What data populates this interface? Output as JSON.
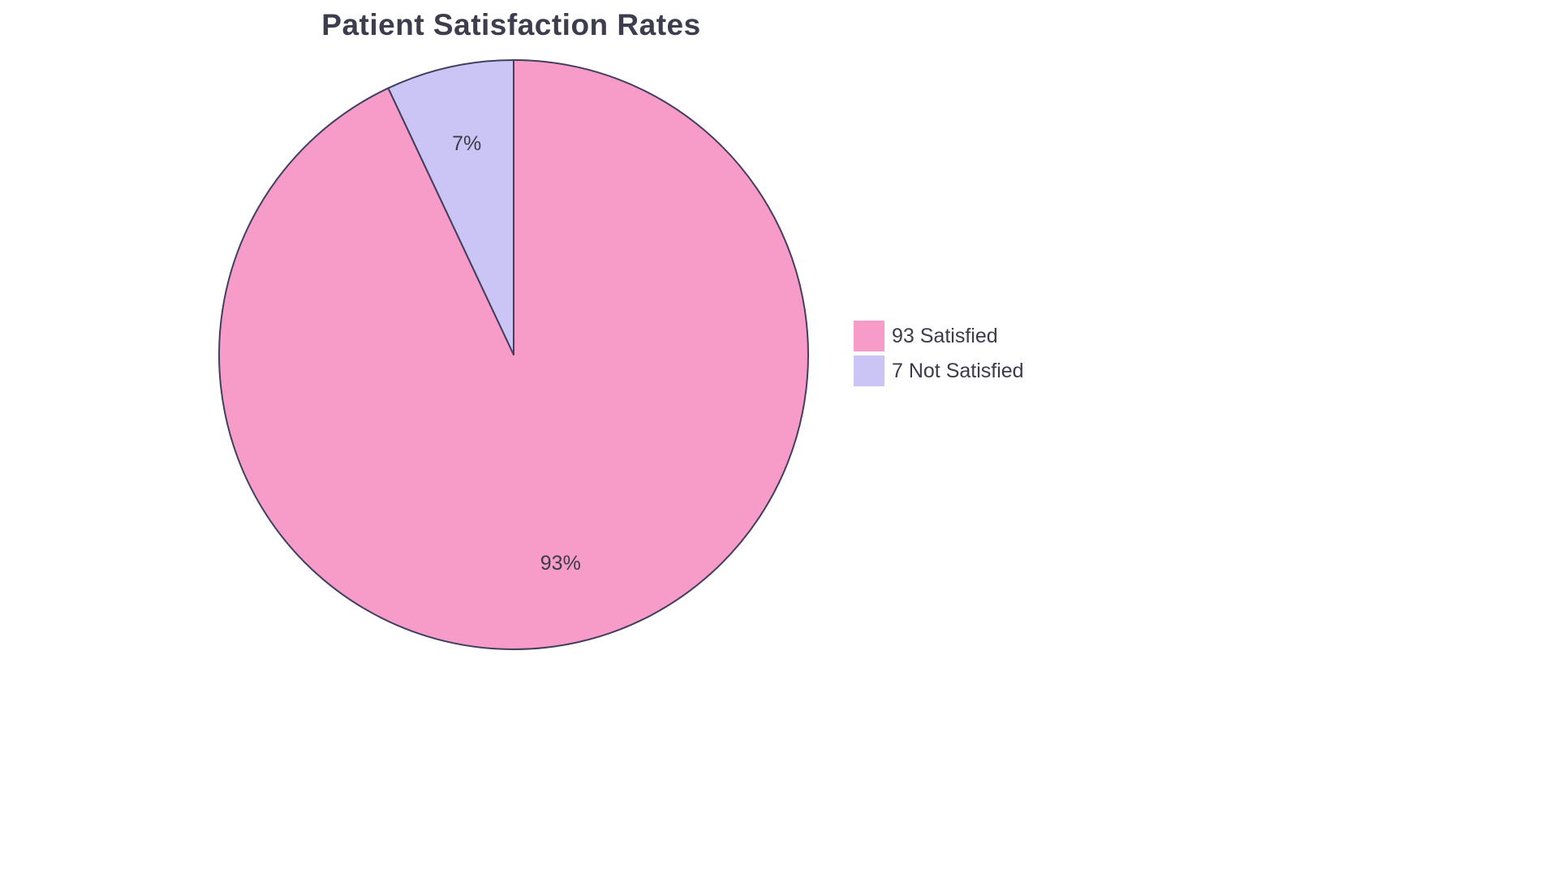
{
  "chart_data": {
    "type": "pie",
    "title": "Patient Satisfaction Rates",
    "categories": [
      "93 Satisfied",
      "7 Not Satisfied"
    ],
    "values": [
      93,
      7
    ],
    "slices": [
      {
        "label": "93 Satisfied",
        "value": 93,
        "percent_label": "93%",
        "color": "#f79bc8"
      },
      {
        "label": "7 Not Satisfied",
        "value": 7,
        "percent_label": "7%",
        "color": "#cac5f5"
      }
    ],
    "start_angle_deg": -90,
    "direction": "clockwise",
    "stroke_color": "#413f60",
    "legend_position": "right",
    "background_color": "#ffffff"
  }
}
